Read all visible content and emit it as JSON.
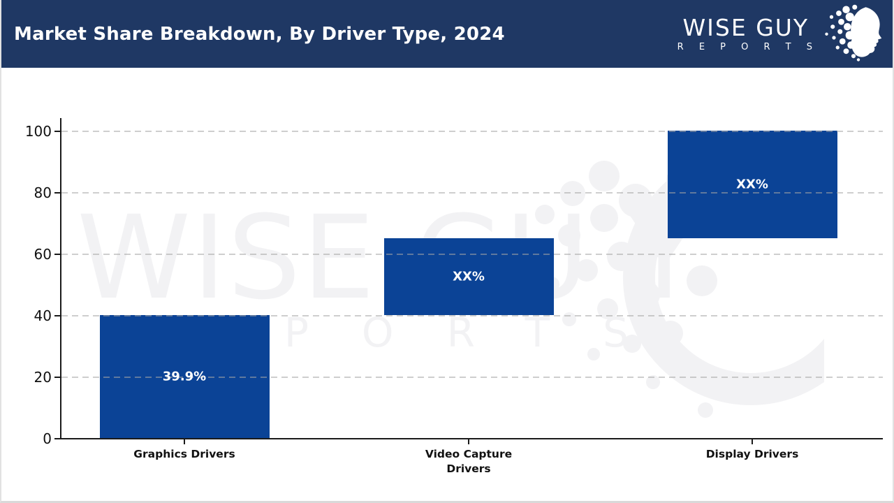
{
  "header": {
    "title": "Market Share Breakdown, By Driver Type, 2024",
    "logo": {
      "name": "WISE GUY",
      "sub": "R E P O R T S"
    }
  },
  "watermark": {
    "name": "WISE GU Y",
    "sub": "REPORTS"
  },
  "chart_data": {
    "type": "bar",
    "subtype": "waterfall",
    "title": "Market Share Breakdown, By Driver Type, 2024",
    "categories": [
      "Graphics Drivers",
      "Video Capture Drivers",
      "Display Drivers"
    ],
    "bars": [
      {
        "category_lines": [
          "Graphics Drivers"
        ],
        "start": 0,
        "end": 39.9,
        "label": "39.9%"
      },
      {
        "category_lines": [
          "Video Capture",
          "Drivers"
        ],
        "start": 40,
        "end": 65,
        "label": "XX%"
      },
      {
        "category_lines": [
          "Display Drivers"
        ],
        "start": 65,
        "end": 100,
        "label": "XX%"
      }
    ],
    "y_ticks": [
      0,
      20,
      40,
      60,
      80,
      100
    ],
    "ylim": [
      0,
      104
    ],
    "xlabel": "",
    "ylabel": "",
    "grid": "horizontal-dashed",
    "legend": "none"
  },
  "colors": {
    "header_bg": "#1f3864",
    "bar": "#0b4396",
    "bar_label": "#ffffff",
    "axis": "#1a1a1a",
    "watermark": "#f2f2f4"
  }
}
